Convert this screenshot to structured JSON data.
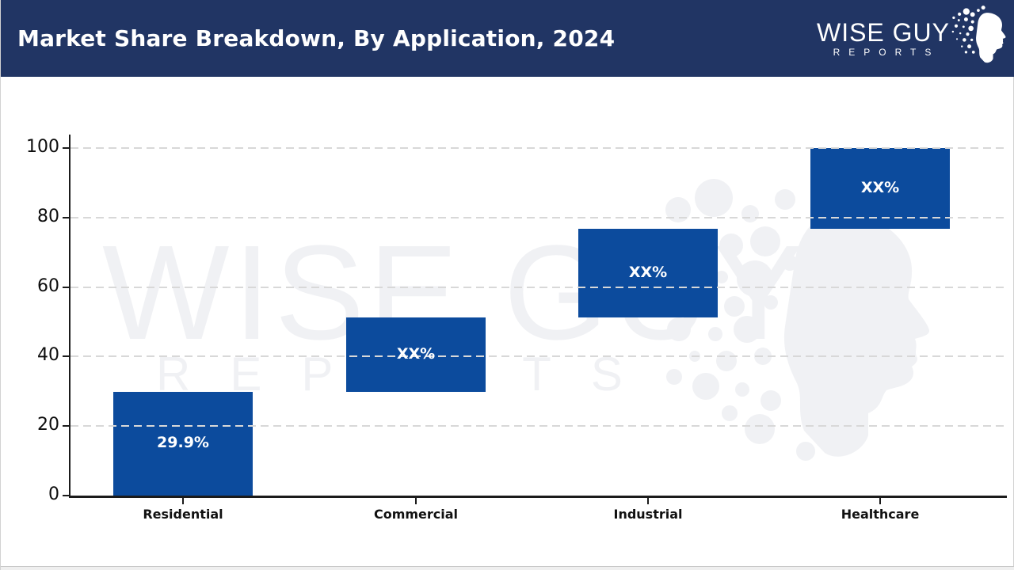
{
  "header": {
    "title": "Market Share Breakdown, By Application, 2024",
    "logo": {
      "name": "WISE GUY",
      "sub": "REPORTS"
    }
  },
  "watermark": {
    "text": "WISE GUY",
    "sub": "REPORTS"
  },
  "chart_data": {
    "type": "bar",
    "variant": "floating-waterfall",
    "title": "Market Share Breakdown, By Application, 2024",
    "categories": [
      "Residential",
      "Commercial",
      "Industrial",
      "Healthcare"
    ],
    "segments": [
      {
        "category": "Residential",
        "start": 0,
        "end": 29.9,
        "label": "29.9%"
      },
      {
        "category": "Commercial",
        "start": 29.9,
        "end": 51.2,
        "label": "XX%"
      },
      {
        "category": "Industrial",
        "start": 51.2,
        "end": 76.8,
        "label": "XX%"
      },
      {
        "category": "Healthcare",
        "start": 76.8,
        "end": 100,
        "label": "XX%"
      }
    ],
    "xlabel": "",
    "ylabel": "",
    "ylim": [
      0,
      100
    ],
    "yticks": [
      0,
      20,
      40,
      60,
      80,
      100
    ],
    "grid": "horizontal-dashed",
    "legend": "none",
    "bar_color": "#0c4b9d",
    "bar_label_color": "#ffffff"
  },
  "colors": {
    "header_bg": "#213564",
    "bar": "#0c4b9d",
    "axis": "#1b1b1b",
    "gridline": "#d8d8d8",
    "watermark": "#f0f1f4"
  }
}
